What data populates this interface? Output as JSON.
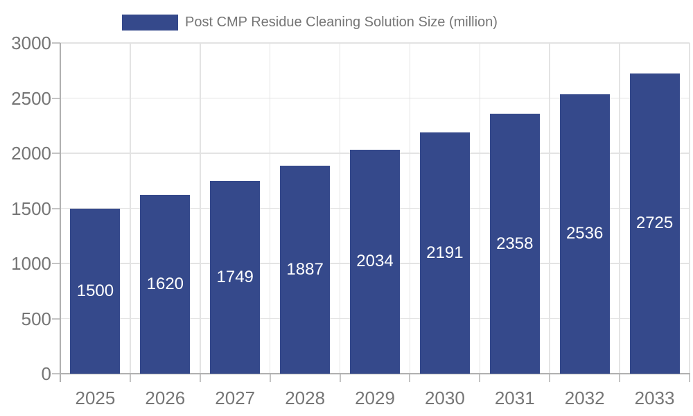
{
  "chart_data": {
    "type": "bar",
    "title": "Post CMP Residue Cleaning Solution Size (million)",
    "legend": [
      "Post CMP Residue Cleaning Solution Size (million)"
    ],
    "legend_position": "top",
    "categories": [
      "2025",
      "2026",
      "2027",
      "2028",
      "2029",
      "2030",
      "2031",
      "2032",
      "2033"
    ],
    "values": [
      1500,
      1620,
      1749,
      1887,
      2034,
      2191,
      2358,
      2536,
      2725
    ],
    "xlabel": "",
    "ylabel": "",
    "ylim": [
      0,
      3000
    ],
    "yticks": [
      0,
      500,
      1000,
      1500,
      2000,
      2500,
      3000
    ],
    "grid": true,
    "bar_labels_visible": true
  },
  "style": {
    "bar_color": "#35498b",
    "bar_label_color": "#ffffff",
    "axis_text_color": "#757575",
    "legend_text_color": "#757575",
    "grid_color": "#e3e3e3",
    "axis_line_color": "#b0b0b0",
    "tick_color": "#c4c4c4",
    "background": "#ffffff"
  }
}
